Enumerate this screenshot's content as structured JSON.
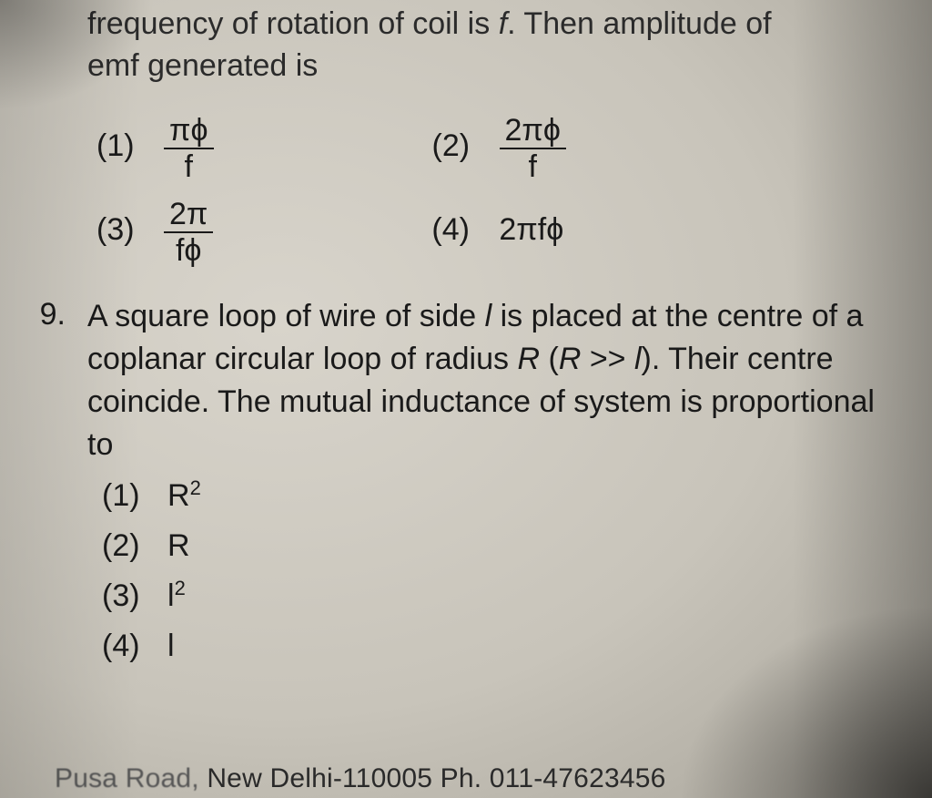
{
  "colors": {
    "text": "#1a1a1a",
    "paper_light": "#d8d4cb",
    "paper_mid": "#c8c4ba",
    "paper_dark": "#a8a49a"
  },
  "q8_partial": {
    "line1_prefix": "frequency of rotation of coil is ",
    "line1_var": "f",
    "line1_suffix": ". Then amplitude of",
    "line2": "emf generated is",
    "options": {
      "o1": {
        "num": "(1)",
        "top": "πϕ",
        "bot": "f"
      },
      "o2": {
        "num": "(2)",
        "top": "2πϕ",
        "bot": "f"
      },
      "o3": {
        "num": "(3)",
        "top": "2π",
        "bot": "fϕ"
      },
      "o4": {
        "num": "(4)",
        "expr": "2πfϕ"
      }
    }
  },
  "q9": {
    "number": "9.",
    "text_parts": {
      "p1": "A square loop of wire of side ",
      "v1": "l",
      "p2": " is placed at the centre of a coplanar circular loop of radius ",
      "v2": "R",
      "p3": " (",
      "v3": "R",
      "p4": " >> ",
      "v5": "l",
      "p5": "). Their centre coincide. The mutual inductance of system is proportional to"
    },
    "options": {
      "o1": {
        "num": "(1)",
        "base": "R",
        "sup": "2"
      },
      "o2": {
        "num": "(2)",
        "base": "R",
        "sup": ""
      },
      "o3": {
        "num": "(3)",
        "base": "l",
        "sup": "2"
      },
      "o4": {
        "num": "(4)",
        "base": "l",
        "sup": ""
      }
    }
  },
  "footer": {
    "faint_prefix": "Pusa Road,",
    "main": " New Delhi-110005 Ph. 011-47623456"
  }
}
